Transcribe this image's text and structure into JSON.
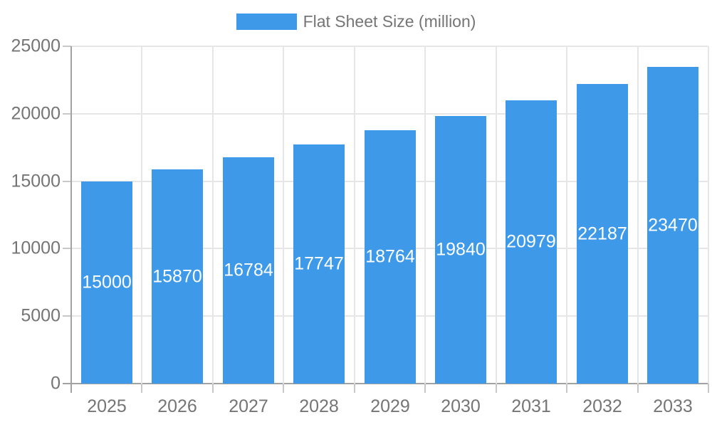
{
  "legend": {
    "label": "Flat Sheet Size (million)"
  },
  "chart_data": {
    "type": "bar",
    "title": "",
    "xlabel": "",
    "ylabel": "",
    "categories": [
      "2025",
      "2026",
      "2027",
      "2028",
      "2029",
      "2030",
      "2031",
      "2032",
      "2033"
    ],
    "series": [
      {
        "name": "Flat Sheet Size (million)",
        "values": [
          15000,
          15870,
          16784,
          17747,
          18764,
          19840,
          20979,
          22187,
          23470
        ]
      }
    ],
    "value_labels": [
      "15000",
      "15870",
      "16784",
      "17747",
      "18764",
      "19840",
      "20979",
      "22187",
      "23470"
    ],
    "value_label_position": "inside-middle",
    "ylim": [
      0,
      25000
    ],
    "ytick_step": 5000,
    "y_tick_labels": [
      "0",
      "5000",
      "10000",
      "15000",
      "20000",
      "25000"
    ],
    "grid": "horizontal gridlines at y ticks and vertical gridlines at category boundaries",
    "legend_position": "top-center"
  },
  "colors": {
    "bar": "#3E9AE9",
    "grid_line": "#E6E6E6",
    "axis_line": "#A2A2A2",
    "tick_line": "#C8C8C8",
    "axis_text": "#757575",
    "legend_text": "#757575",
    "value_label_text": "#FFFFFF",
    "background": "#FFFFFF"
  }
}
